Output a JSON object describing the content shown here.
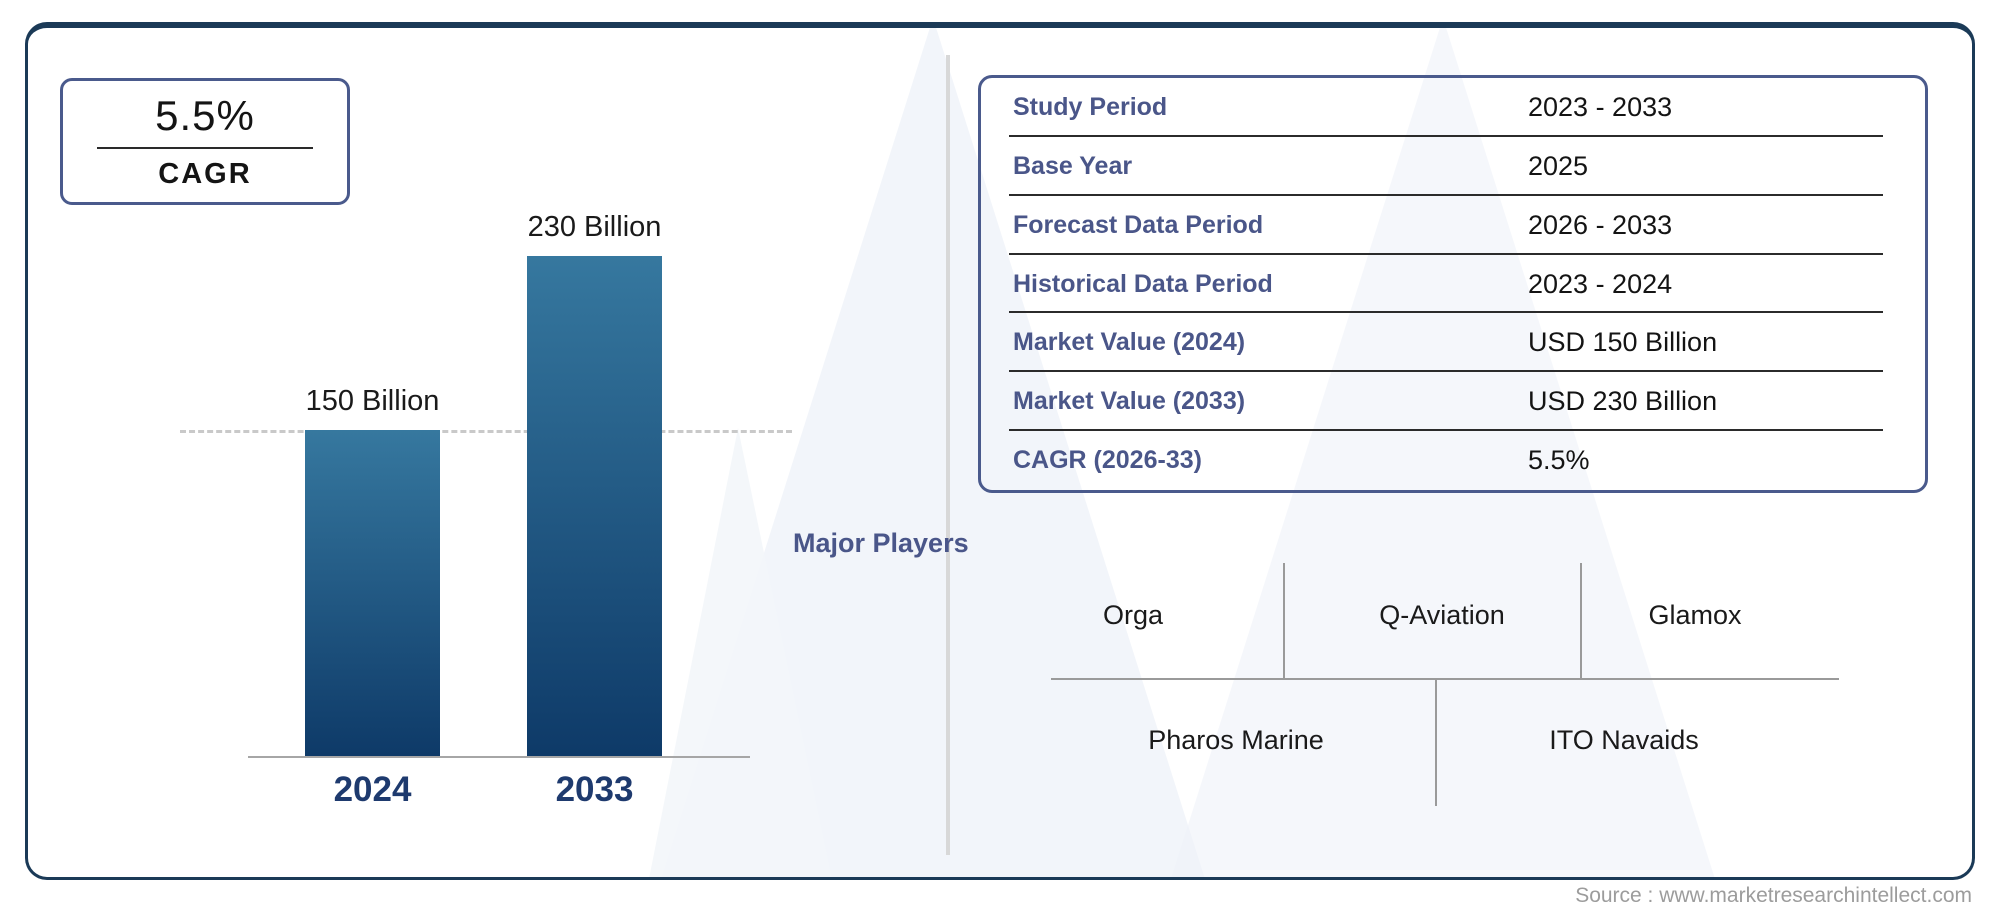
{
  "palette": {
    "frame_border": "#1b3a57",
    "accent_label_blue": "#4a5689",
    "table_border_blue": "#4a5a8c",
    "bar_gradient_top": "#36789f",
    "bar_gradient_bottom": "#0e3a68",
    "year_label_navy": "#1e3a6e",
    "line_gray": "#9a9a9a",
    "dash_gray": "#c9c9c9",
    "watermark_blue": "#eef2f8",
    "source_gray": "#9c9c9c"
  },
  "cagr_badge": {
    "value": "5.5%",
    "label": "CAGR"
  },
  "chart_data": {
    "type": "bar",
    "title": "",
    "xlabel": "",
    "ylabel": "",
    "categories": [
      "2024",
      "2033"
    ],
    "values": [
      150,
      230
    ],
    "unit": "USD Billion",
    "value_labels": [
      "150 Billion",
      "230 Billion"
    ],
    "ylim": [
      0,
      230
    ],
    "reference_line_value": 150,
    "grid": false,
    "legend": false,
    "bar_color_gradient": [
      "#36789f",
      "#0e3a68"
    ]
  },
  "info_table": {
    "rows": [
      {
        "label": "Study Period",
        "value": "2023 - 2033"
      },
      {
        "label": "Base Year",
        "value": "2025"
      },
      {
        "label": "Forecast Data Period",
        "value": "2026 - 2033"
      },
      {
        "label": "Historical Data Period",
        "value": "2023 - 2024"
      },
      {
        "label": "Market Value (2024)",
        "value": "USD 150 Billion"
      },
      {
        "label": "Market Value (2033)",
        "value": "USD 230 Billion"
      },
      {
        "label": "CAGR (2026-33)",
        "value": "5.5%"
      }
    ]
  },
  "major_players": {
    "title": "Major Players",
    "row1": [
      "Orga",
      "Q-Aviation",
      "Glamox"
    ],
    "row2": [
      "Pharos Marine",
      "ITO Navaids"
    ]
  },
  "footer": {
    "source": "Source : www.marketresearchintellect.com"
  }
}
